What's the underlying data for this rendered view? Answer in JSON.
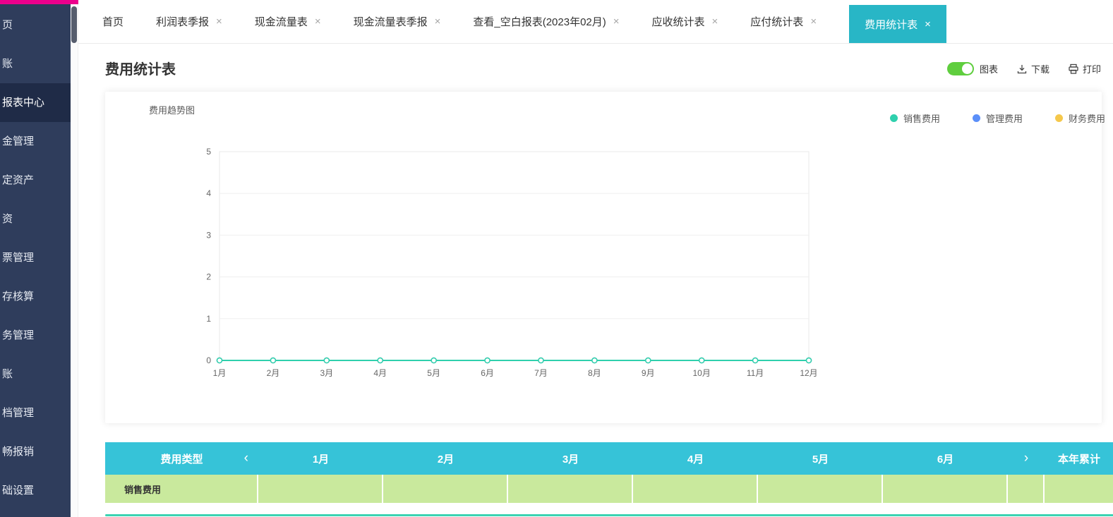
{
  "colors": {
    "magenta": "#ec008c",
    "sidebar_bg": "#2f3d5c",
    "sidebar_active_bg": "#1f2b47",
    "tab_active_bg": "#28b6c6",
    "table_header_bg": "#36c3d8",
    "row_green": "#c9e99d",
    "toggle_green": "#5fce3e"
  },
  "sidebar": {
    "items": [
      {
        "label": "页",
        "active": false
      },
      {
        "label": "账",
        "active": false
      },
      {
        "label": "报表中心",
        "active": true
      },
      {
        "label": "金管理",
        "active": false
      },
      {
        "label": "定资产",
        "active": false
      },
      {
        "label": "资",
        "active": false
      },
      {
        "label": "票管理",
        "active": false
      },
      {
        "label": "存核算",
        "active": false
      },
      {
        "label": "务管理",
        "active": false
      },
      {
        "label": "账",
        "active": false
      },
      {
        "label": "档管理",
        "active": false
      },
      {
        "label": "畅报销",
        "active": false
      },
      {
        "label": "础设置",
        "active": false
      }
    ]
  },
  "tabs": {
    "items": [
      {
        "label": "首页",
        "closable": false,
        "active": false
      },
      {
        "label": "利润表季报",
        "closable": true,
        "active": false
      },
      {
        "label": "现金流量表",
        "closable": true,
        "active": false
      },
      {
        "label": "现金流量表季报",
        "closable": true,
        "active": false
      },
      {
        "label": "查看_空白报表(2023年02月)",
        "closable": true,
        "active": false
      },
      {
        "label": "应收统计表",
        "closable": true,
        "active": false
      },
      {
        "label": "应付统计表",
        "closable": true,
        "active": false
      },
      {
        "label": "费用统计表",
        "closable": true,
        "active": true
      }
    ]
  },
  "page": {
    "title": "费用统计表"
  },
  "toolbar": {
    "chart_toggle_label": "图表",
    "chart_toggle_on": true,
    "download_label": "下载",
    "print_label": "打印"
  },
  "chart_data": {
    "type": "line",
    "title": "费用趋势图",
    "x": [
      "1月",
      "2月",
      "3月",
      "4月",
      "5月",
      "6月",
      "7月",
      "8月",
      "9月",
      "10月",
      "11月",
      "12月"
    ],
    "yticks": [
      0,
      1,
      2,
      3,
      4,
      5
    ],
    "ylim": [
      0,
      5
    ],
    "grid": true,
    "legend_position": "top-right",
    "series": [
      {
        "name": "销售费用",
        "color": "#2fd0ad",
        "values": [
          0,
          0,
          0,
          0,
          0,
          0,
          0,
          0,
          0,
          0,
          0,
          0
        ]
      },
      {
        "name": "管理费用",
        "color": "#5b8ff9",
        "values": [
          0,
          0,
          0,
          0,
          0,
          0,
          0,
          0,
          0,
          0,
          0,
          0
        ]
      },
      {
        "name": "财务费用",
        "color": "#f5c84c",
        "values": [
          0,
          0,
          0,
          0,
          0,
          0,
          0,
          0,
          0,
          0,
          0,
          0
        ]
      }
    ]
  },
  "table": {
    "header": {
      "first_col": "费用类型",
      "months": [
        "1月",
        "2月",
        "3月",
        "4月",
        "5月",
        "6月"
      ],
      "last_col": "本年累计",
      "prev_arrow": "‹",
      "next_arrow": "›"
    },
    "rows": [
      {
        "label": "销售费用",
        "values": [
          "",
          "",
          "",
          "",
          "",
          "",
          ""
        ]
      }
    ]
  }
}
